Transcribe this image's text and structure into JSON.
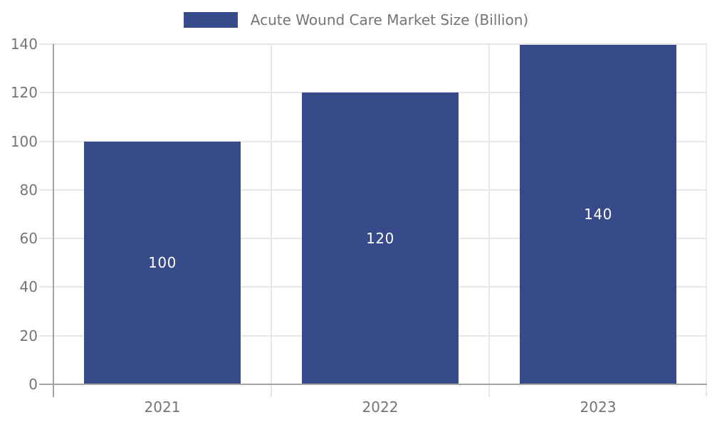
{
  "legend": {
    "label": "Acute Wound Care Market Size (Billion)"
  },
  "chart_data": {
    "type": "bar",
    "title": "Acute Wound Care Market Size (Billion)",
    "categories": [
      "2021",
      "2022",
      "2023"
    ],
    "values": [
      100,
      120,
      140
    ],
    "xlabel": "",
    "ylabel": "",
    "ylim": [
      0,
      140
    ],
    "yticks": [
      0,
      20,
      40,
      60,
      80,
      100,
      120,
      140
    ],
    "grid": true,
    "legend_position": "top-center",
    "bar_labels_visible": true,
    "colors": {
      "bar": "#374A89",
      "bar_label": "#FFFFFF",
      "axis_line": "#A3A3A3",
      "gridline": "#E7E7E7",
      "tick_label": "#757575",
      "background": "#FFFFFF"
    }
  }
}
